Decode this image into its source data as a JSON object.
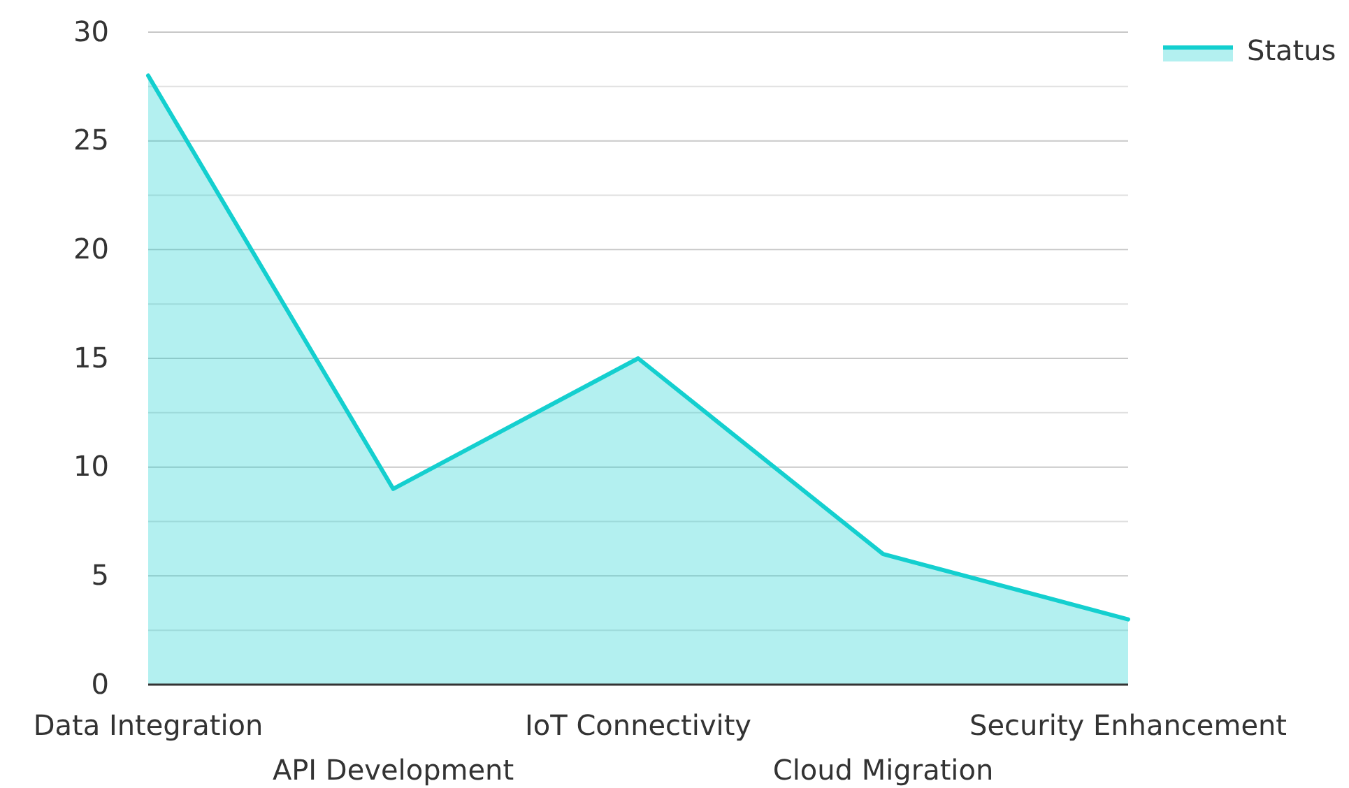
{
  "chart_data": {
    "type": "area",
    "categories": [
      "Data Integration",
      "API Development",
      "IoT Connectivity",
      "Cloud Migration",
      "Security Enhancement"
    ],
    "series": [
      {
        "name": "Status",
        "color": "#14cfcf",
        "values": [
          28,
          9,
          15,
          6,
          3
        ]
      }
    ],
    "ylim": [
      0,
      30
    ],
    "yticks": [
      0,
      {
        "value": 2.5,
        "label": null
      },
      5,
      {
        "value": 7.5,
        "label": null
      },
      10,
      {
        "value": 12.5,
        "label": null
      },
      15,
      {
        "value": 17.5,
        "label": null
      },
      20,
      {
        "value": 22.5,
        "label": null
      },
      25,
      {
        "value": 27.5,
        "label": null
      },
      30
    ],
    "grid": "y",
    "legend": "top right"
  }
}
